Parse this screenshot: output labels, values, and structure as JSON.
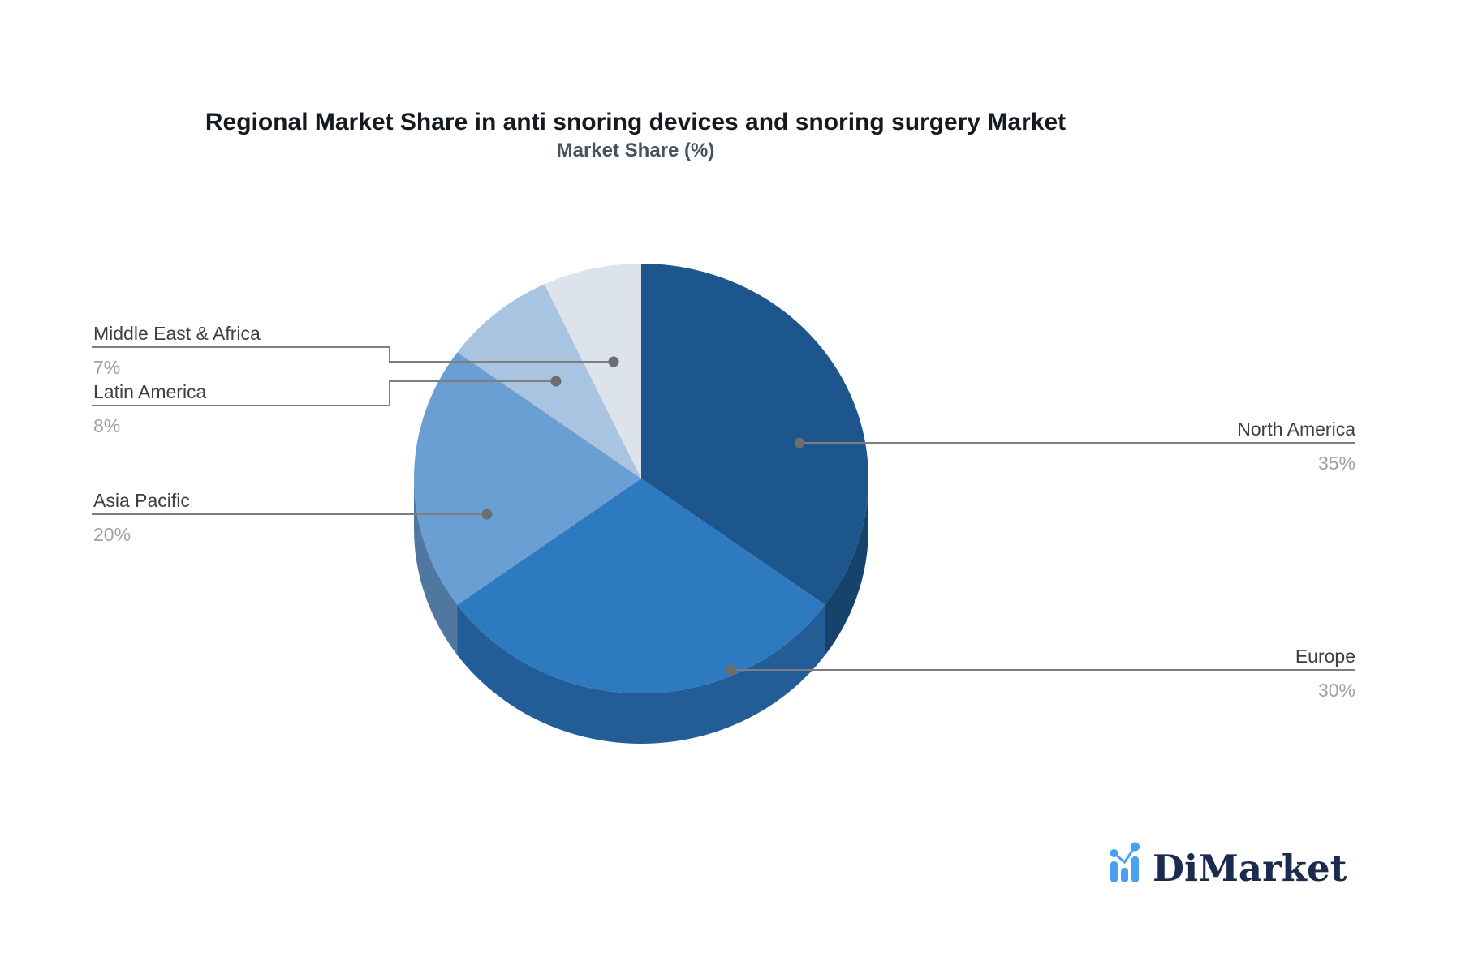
{
  "title": "Regional Market Share in anti snoring devices and snoring surgery Market",
  "subtitle": "Market Share (%)",
  "logo": {
    "text": "DiMarket"
  },
  "chart_data": {
    "type": "pie",
    "style": "3d-pie",
    "title": "Market Share (%)",
    "unit": "%",
    "direction": "clockwise",
    "start_angle_deg": 0,
    "legend_position": "callouts",
    "labels": [
      "North America",
      "Europe",
      "Asia Pacific",
      "Latin America",
      "Middle East & Africa"
    ],
    "values": [
      35,
      30,
      20,
      8,
      7
    ],
    "display_values": [
      "35%",
      "30%",
      "20%",
      "8%",
      "7%"
    ],
    "colors": [
      "#1C568C",
      "#2E7AC1",
      "#699FD2",
      "#A9C4E0",
      "#DDE3ED"
    ],
    "side_colors": [
      "#15436C",
      "#235D97",
      "#50779F",
      "#84A3C6",
      "#ADBDD2"
    ],
    "callout_style": {
      "line_color": "#7E7E7E",
      "dot_color": "#6D6D6D",
      "label_color": "#3C4046",
      "value_color": "#9AA1A8"
    },
    "title_color": "#141A20",
    "subtitle_color": "#46525F",
    "logo_text_color": "#1B2B4D",
    "logo_icon_color": "#4AA0F0"
  }
}
